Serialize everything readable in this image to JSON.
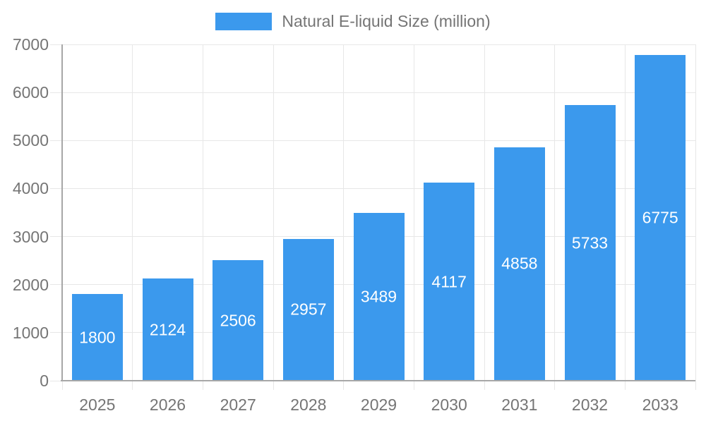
{
  "chart_data": {
    "type": "bar",
    "title": "",
    "legend": "Natural E-liquid Size (million)",
    "legend_position": "top",
    "categories": [
      "2025",
      "2026",
      "2027",
      "2028",
      "2029",
      "2030",
      "2031",
      "2032",
      "2033"
    ],
    "values": [
      1800,
      2124,
      2506,
      2957,
      3489,
      4117,
      4858,
      5733,
      6775
    ],
    "xlabel": "",
    "ylabel": "",
    "ylim": [
      0,
      7000
    ],
    "yticks": [
      0,
      1000,
      2000,
      3000,
      4000,
      5000,
      6000,
      7000
    ],
    "grid": true,
    "bar_labels_inside": true
  },
  "colors": {
    "bar": "#3B99ED",
    "grid": "#E7E7E7",
    "axis": "#A7A7A7",
    "text": "#757575",
    "bar_label": "#FFFFFF",
    "background": "#FFFFFF"
  }
}
